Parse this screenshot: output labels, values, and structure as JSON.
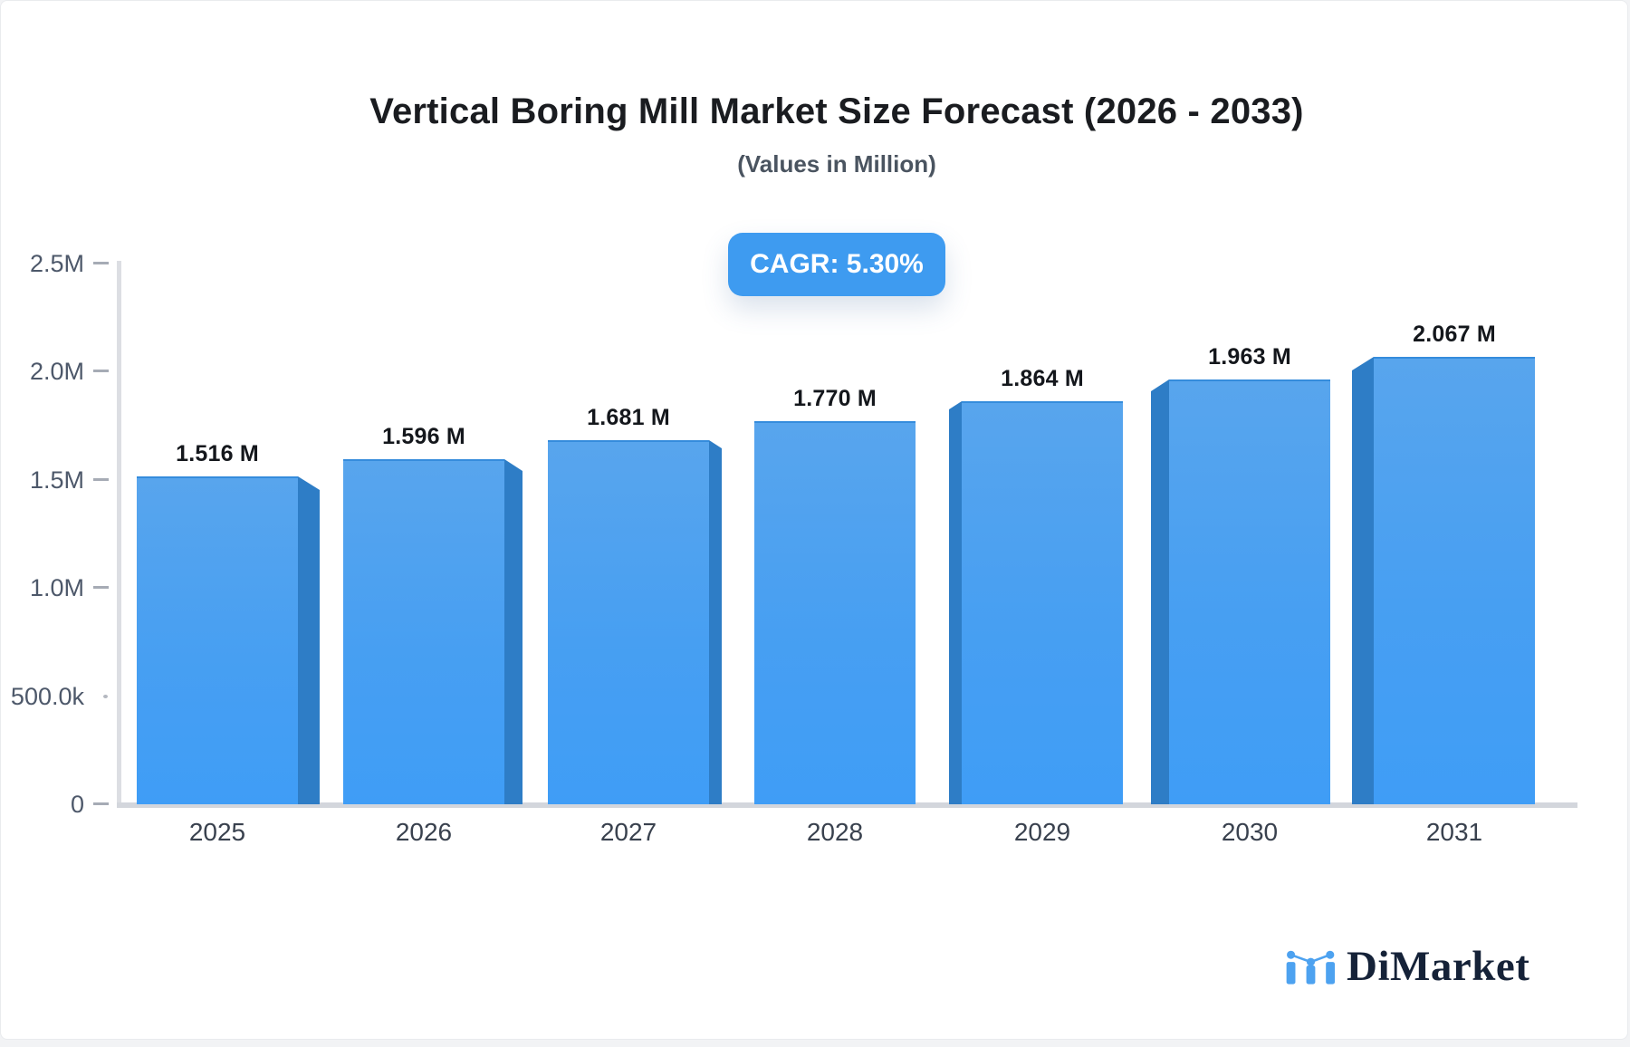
{
  "header": {
    "title": "Vertical Boring Mill Market Size Forecast (2026 - 2033)",
    "subtitle": "(Values in Million)",
    "cagr_badge": "CAGR: 5.30%"
  },
  "chart_data": {
    "type": "bar",
    "title": "Vertical Boring Mill Market Size Forecast (2026 - 2033)",
    "subtitle": "(Values in Million)",
    "unit": "Million",
    "cagr": "5.30%",
    "categories": [
      "2025",
      "2026",
      "2027",
      "2028",
      "2029",
      "2030",
      "2031"
    ],
    "values": [
      1.516,
      1.596,
      1.681,
      1.77,
      1.864,
      1.963,
      2.067
    ],
    "value_labels": [
      "1.516 M",
      "1.596 M",
      "1.681 M",
      "1.770 M",
      "1.864 M",
      "1.963 M",
      "2.067 M"
    ],
    "ylim": [
      0,
      2.5
    ],
    "y_ticks": [
      {
        "label": "0",
        "value": 0
      },
      {
        "label": "500.0k",
        "value": 0.5
      },
      {
        "label": "1.0M",
        "value": 1.0
      },
      {
        "label": "1.5M",
        "value": 1.5
      },
      {
        "label": "2.0M",
        "value": 2.0
      },
      {
        "label": "2.5M",
        "value": 2.5
      }
    ],
    "grid": false,
    "legend": false,
    "bar_color_top": "#58A5ED",
    "bar_color_bottom": "#3F9DF6",
    "bar_side_color": "#2E7DC6"
  },
  "footer": {
    "brand": "DiMarket",
    "logo_icon": "bar-chart-icon"
  },
  "colors": {
    "accent": "#3E9BF0",
    "axis": "#D3D6DC",
    "tick": "#A6ABB5"
  }
}
